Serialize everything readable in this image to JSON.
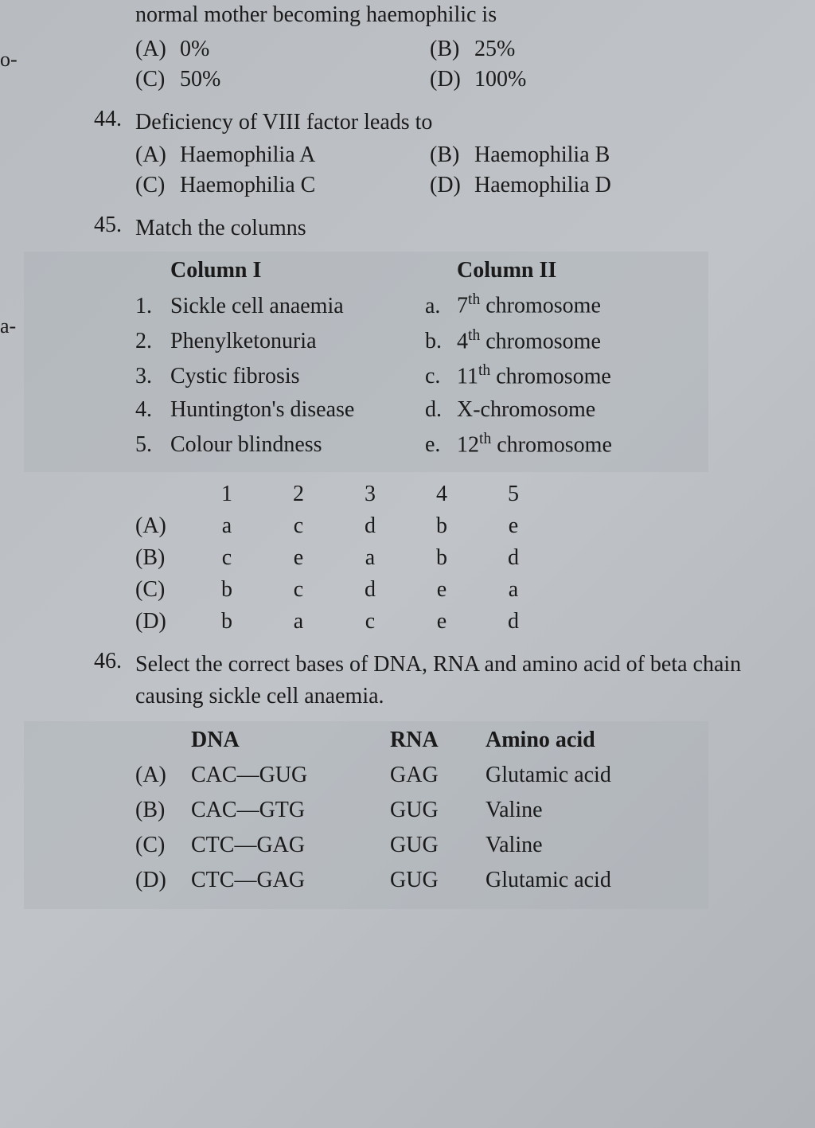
{
  "q43": {
    "partial_text": "normal mother becoming haemophilic is",
    "options": {
      "A": "0%",
      "B": "25%",
      "C": "50%",
      "D": "100%"
    }
  },
  "q44": {
    "number": "44.",
    "text": "Deficiency of VIII factor leads to",
    "options": {
      "A": "Haemophilia A",
      "B": "Haemophilia B",
      "C": "Haemophilia C",
      "D": "Haemophilia D"
    }
  },
  "q45": {
    "number": "45.",
    "text": "Match the columns",
    "col1_header": "Column I",
    "col2_header": "Column II",
    "rows": [
      {
        "n1": "1.",
        "c1": "Sickle cell anaemia",
        "n2": "a.",
        "c2_pre": "7",
        "c2_sup": "th",
        "c2_post": " chromosome"
      },
      {
        "n1": "2.",
        "c1": "Phenylketonuria",
        "n2": "b.",
        "c2_pre": "4",
        "c2_sup": "th",
        "c2_post": " chromosome"
      },
      {
        "n1": "3.",
        "c1": "Cystic fibrosis",
        "n2": "c.",
        "c2_pre": "11",
        "c2_sup": "th",
        "c2_post": " chromosome"
      },
      {
        "n1": "4.",
        "c1": "Huntington's disease",
        "n2": "d.",
        "c2_pre": "",
        "c2_sup": "",
        "c2_post": "X-chromosome"
      },
      {
        "n1": "5.",
        "c1": "Colour blindness",
        "n2": "e.",
        "c2_pre": "12",
        "c2_sup": "th",
        "c2_post": " chromosome"
      }
    ],
    "answer_headers": [
      "1",
      "2",
      "3",
      "4",
      "5"
    ],
    "answers": [
      {
        "label": "(A)",
        "vals": [
          "a",
          "c",
          "d",
          "b",
          "e"
        ]
      },
      {
        "label": "(B)",
        "vals": [
          "c",
          "e",
          "a",
          "b",
          "d"
        ]
      },
      {
        "label": "(C)",
        "vals": [
          "b",
          "c",
          "d",
          "e",
          "a"
        ]
      },
      {
        "label": "(D)",
        "vals": [
          "b",
          "a",
          "c",
          "e",
          "d"
        ]
      }
    ]
  },
  "q46": {
    "number": "46.",
    "text": "Select the correct bases of DNA, RNA and amino acid of beta chain causing sickle cell anaemia.",
    "headers": [
      "DNA",
      "RNA",
      "Amino acid"
    ],
    "rows": [
      {
        "label": "(A)",
        "dna": "CAC—GUG",
        "rna": "GAG",
        "aa": "Glutamic acid"
      },
      {
        "label": "(B)",
        "dna": "CAC—GTG",
        "rna": "GUG",
        "aa": "Valine"
      },
      {
        "label": "(C)",
        "dna": "CTC—GAG",
        "rna": "GUG",
        "aa": "Valine"
      },
      {
        "label": "(D)",
        "dna": "CTC—GAG",
        "rna": "GUG",
        "aa": "Glutamic acid"
      }
    ]
  },
  "side_markers": {
    "m1": "o-",
    "m2": "a-"
  }
}
